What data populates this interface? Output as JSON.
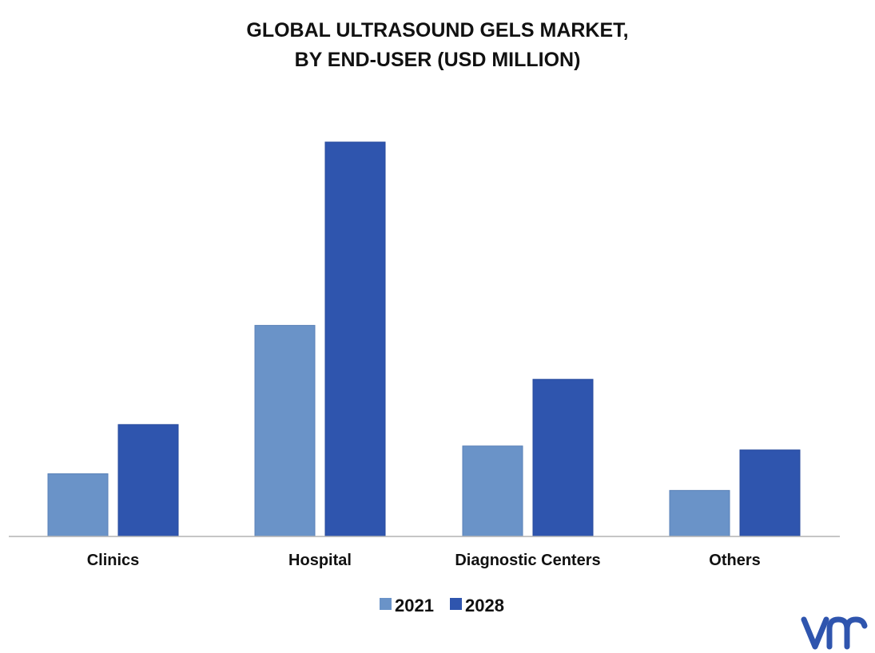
{
  "chart_data": {
    "type": "bar",
    "title_line1": "GLOBAL ULTRASOUND GELS MARKET,",
    "title_line2": "BY END-USER (USD MILLION)",
    "xlabel": "",
    "ylabel": "",
    "categories": [
      "Clinics",
      "Hospital",
      "Diagnostic Centers",
      "Others"
    ],
    "series": [
      {
        "name": "2021",
        "color": "#6a93c8",
        "values": [
          79,
          266,
          114,
          58
        ]
      },
      {
        "name": "2028",
        "color": "#2f55ae",
        "values": [
          141,
          497,
          198,
          109
        ]
      }
    ],
    "ylim": [
      0,
      500
    ],
    "grid": false,
    "legend_position": "bottom"
  },
  "brand": {
    "logo_icon": "vmr-logo-icon",
    "color": "#2f55ae"
  }
}
